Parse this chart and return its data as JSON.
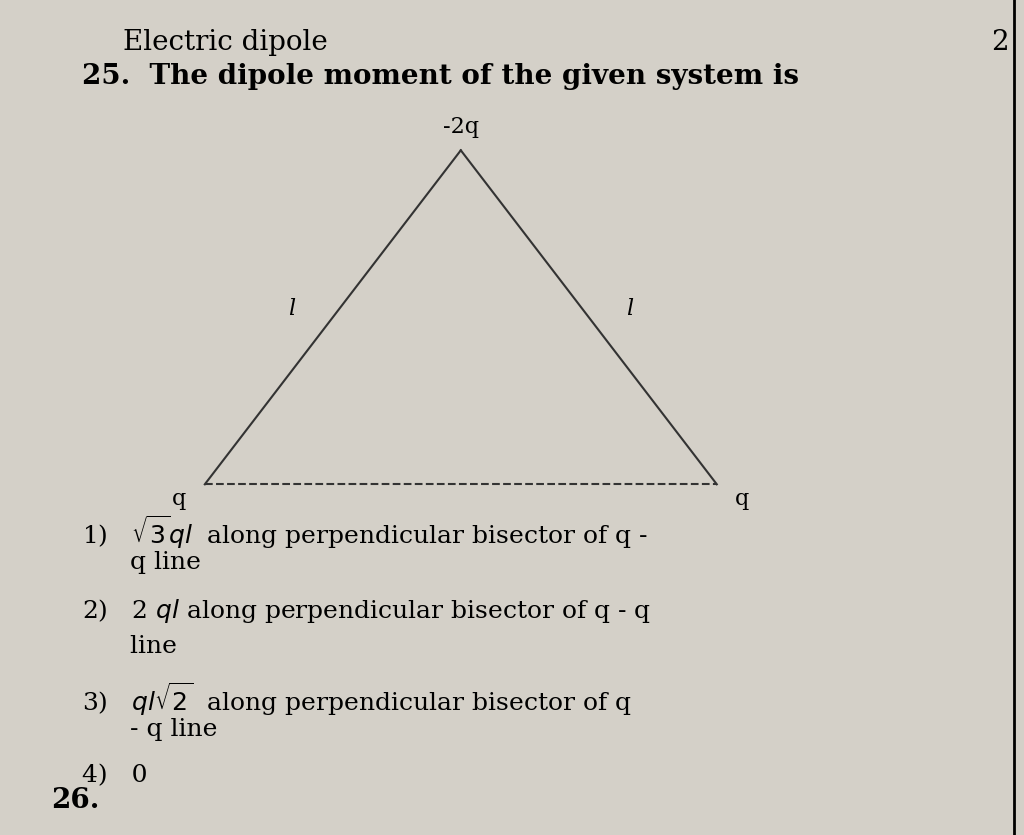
{
  "title": "Electric dipole",
  "question": "25.  The dipole moment of the given system is",
  "bg_color": "#d4d0c8",
  "triangle": {
    "labels": [
      "q",
      "q",
      "-2q"
    ],
    "side_labels": [
      "l",
      "l"
    ],
    "color": "#333333",
    "linewidth": 1.5
  },
  "page_number": "2",
  "bottom_label": "26.",
  "fontsize_title": 20,
  "fontsize_question": 20,
  "fontsize_options": 18,
  "fontsize_labels": 16
}
